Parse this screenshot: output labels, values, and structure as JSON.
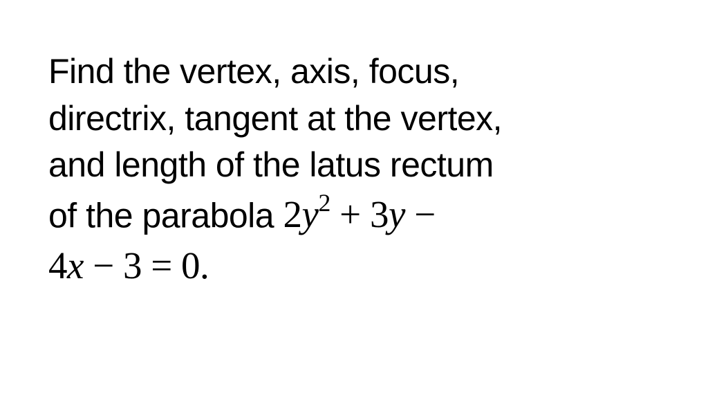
{
  "problem": {
    "line1": "Find the vertex, axis, focus,",
    "line2": "directrix, tangent at the vertex,",
    "line3": "and length of the latus rectum",
    "line4_prefix": "of the parabola ",
    "eq_part1": "2",
    "eq_var_y1": "y",
    "eq_exp": "2",
    "eq_plus1": " + 3",
    "eq_var_y2": "y",
    "eq_minus1": " −",
    "eq_part2": "4",
    "eq_var_x": "x",
    "eq_rest": " − 3 = 0.",
    "text_color": "#000000",
    "background": "#ffffff",
    "font_size_text": 50,
    "font_size_math": 55
  }
}
